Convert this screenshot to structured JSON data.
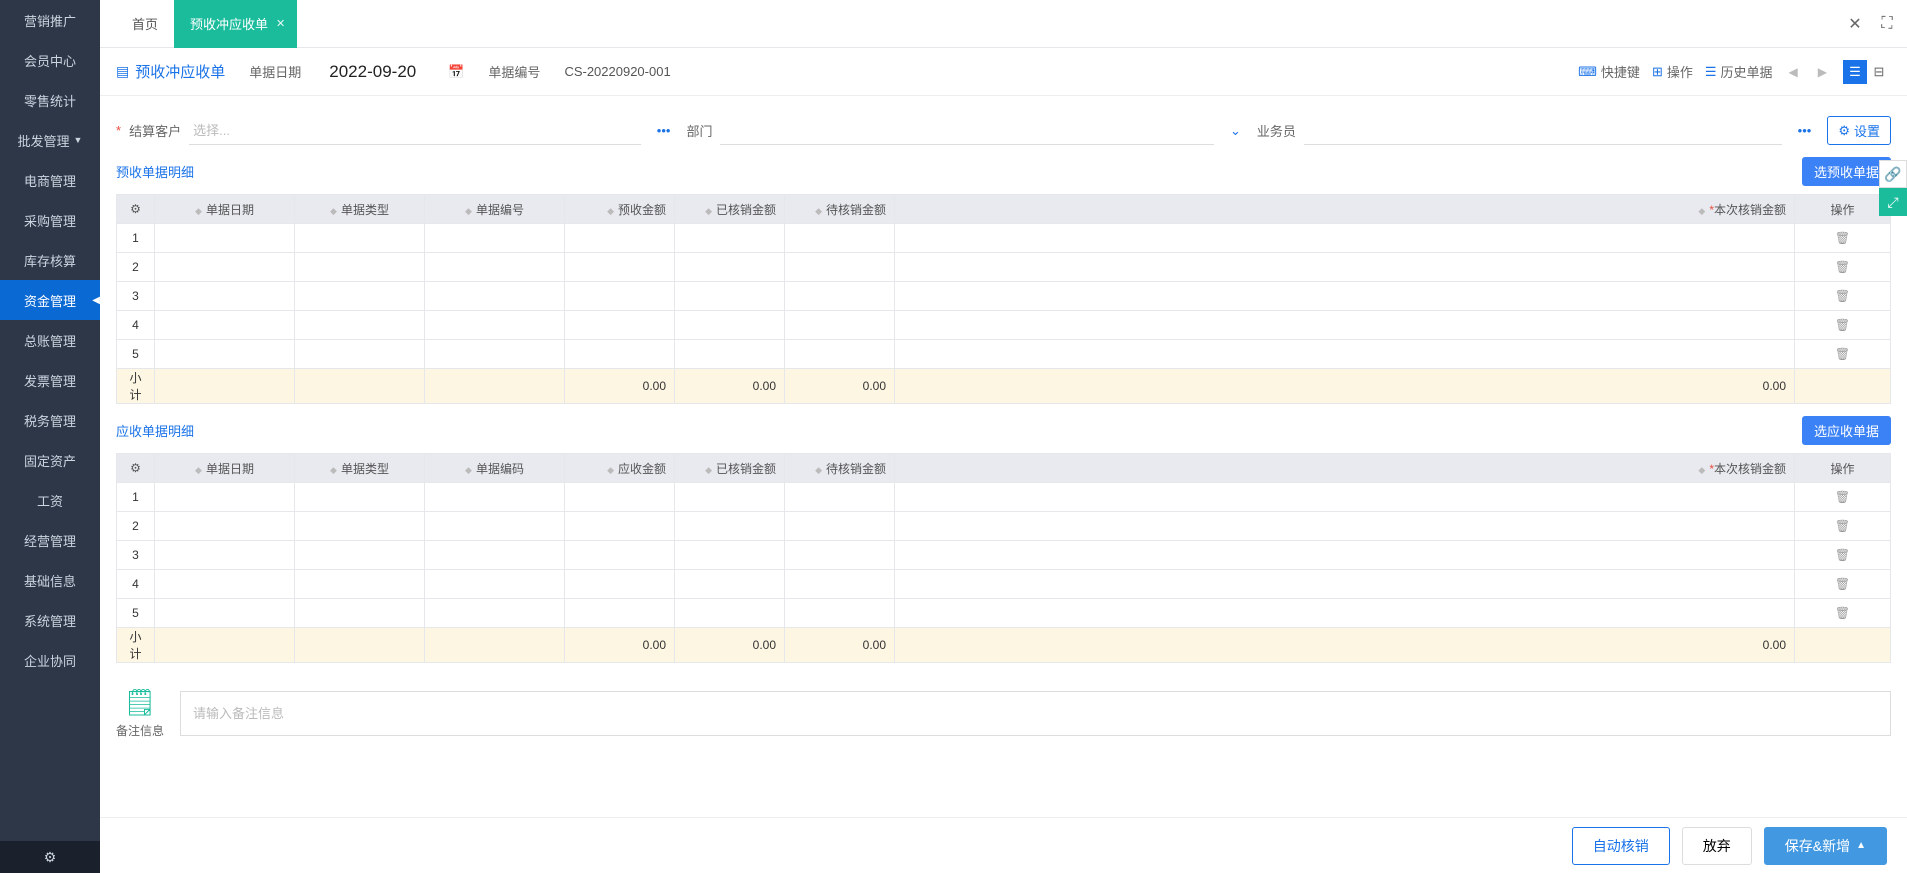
{
  "sidebar": {
    "items": [
      {
        "label": "营销推广"
      },
      {
        "label": "会员中心"
      },
      {
        "label": "零售统计"
      },
      {
        "label": "批发管理",
        "arrow": true
      },
      {
        "label": "电商管理"
      },
      {
        "label": "采购管理"
      },
      {
        "label": "库存核算"
      },
      {
        "label": "资金管理",
        "active": true
      },
      {
        "label": "总账管理"
      },
      {
        "label": "发票管理"
      },
      {
        "label": "税务管理"
      },
      {
        "label": "固定资产"
      },
      {
        "label": "工资"
      },
      {
        "label": "经营管理"
      },
      {
        "label": "基础信息"
      },
      {
        "label": "系统管理"
      },
      {
        "label": "企业协同"
      }
    ]
  },
  "tabs": {
    "home": "首页",
    "active": "预收冲应收单"
  },
  "doc": {
    "title": "预收冲应收单",
    "date_label": "单据日期",
    "date": "2022-09-20",
    "no_label": "单据编号",
    "no": "CS-20220920-001",
    "shortcut": "快捷键",
    "ops": "操作",
    "history": "历史单据"
  },
  "form": {
    "customer_label": "结算客户",
    "customer_placeholder": "选择...",
    "dept_label": "部门",
    "sales_label": "业务员",
    "settings": "设置"
  },
  "sec1": {
    "title": "预收单据明细",
    "button": "选预收单据",
    "cols": {
      "date": "单据日期",
      "type": "单据类型",
      "no": "单据编号",
      "amt": "预收金额",
      "verified": "已核销金额",
      "pending": "待核销金额",
      "this": "本次核销金额",
      "op": "操作"
    },
    "rows": [
      "1",
      "2",
      "3",
      "4",
      "5"
    ],
    "subtotal_label": "小计",
    "subtotal": {
      "amt": "0.00",
      "verified": "0.00",
      "pending": "0.00",
      "this": "0.00"
    }
  },
  "sec2": {
    "title": "应收单据明细",
    "button": "选应收单据",
    "cols": {
      "date": "单据日期",
      "type": "单据类型",
      "no": "单据编码",
      "amt": "应收金额",
      "verified": "已核销金额",
      "pending": "待核销金额",
      "this": "本次核销金额",
      "op": "操作"
    },
    "rows": [
      "1",
      "2",
      "3",
      "4",
      "5"
    ],
    "subtotal_label": "小计",
    "subtotal": {
      "amt": "0.00",
      "verified": "0.00",
      "pending": "0.00",
      "this": "0.00"
    }
  },
  "remarks": {
    "label": "备注信息",
    "placeholder": "请输入备注信息"
  },
  "footer": {
    "auto": "自动核销",
    "discard": "放弃",
    "save": "保存&新增"
  }
}
